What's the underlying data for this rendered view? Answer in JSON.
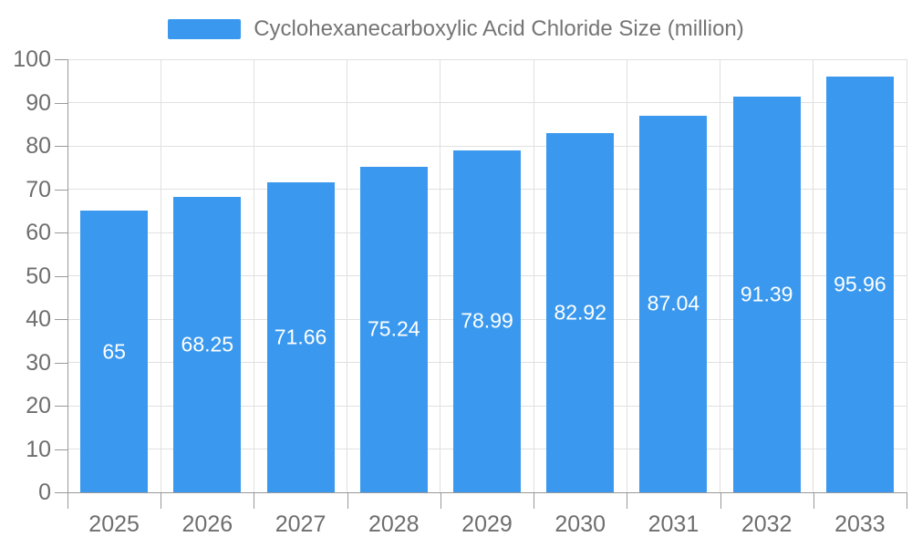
{
  "chart_data": {
    "type": "bar",
    "title": "Cyclohexanecarboxylic Acid Chloride Size (million)",
    "categories": [
      "2025",
      "2026",
      "2027",
      "2028",
      "2029",
      "2030",
      "2031",
      "2032",
      "2033"
    ],
    "values": [
      65,
      68.25,
      71.66,
      75.24,
      78.99,
      82.92,
      87.04,
      91.39,
      95.96
    ],
    "value_labels": [
      "65",
      "68.25",
      "71.66",
      "75.24",
      "78.99",
      "82.92",
      "87.04",
      "91.39",
      "95.96"
    ],
    "ylabel": "",
    "xlabel": "",
    "ylim": [
      0,
      100
    ],
    "y_ticks": [
      0,
      10,
      20,
      30,
      40,
      50,
      60,
      70,
      80,
      90,
      100
    ],
    "grid": true,
    "legend_position": "top-center",
    "colors": {
      "bar": "#3A99EE",
      "grid_line": "#E0E0E0",
      "axis_line": "#999999",
      "axis_label": "#6E6E6E",
      "title_text": "#757575",
      "bar_label": "#FFFFFF",
      "background": "#FFFFFF"
    }
  }
}
